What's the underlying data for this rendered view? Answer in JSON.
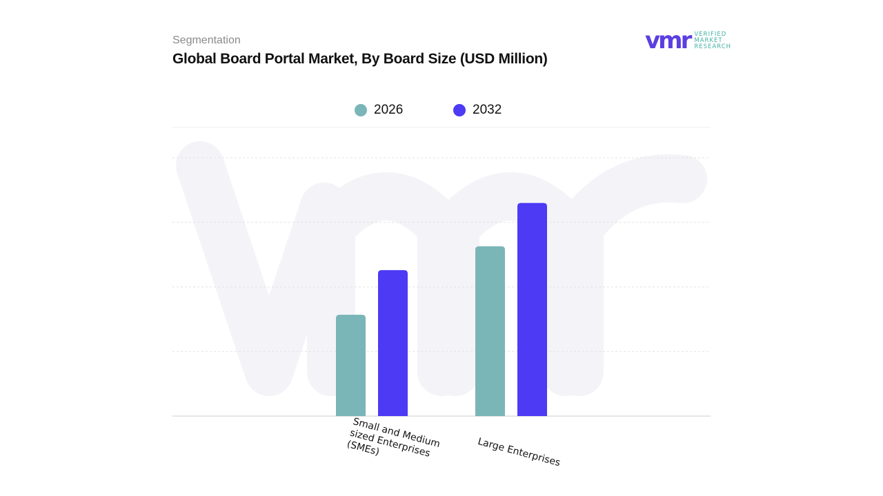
{
  "header": {
    "section": "Segmentation",
    "title": "Global Board Portal Market, By Board Size (USD Million)"
  },
  "logo": {
    "mark": "vmr",
    "line1": "VERIFIED",
    "line2": "MARKET",
    "line3": "RESEARCH"
  },
  "chart_data": {
    "type": "bar",
    "title": "Global Board Portal Market, By Board Size (USD Million)",
    "categories": [
      "Small and Medium sized Enterprises (SMEs)",
      "Large Enterprises"
    ],
    "series": [
      {
        "name": "2026",
        "color": "#7ab5b8",
        "values": [
          1.57,
          2.63
        ]
      },
      {
        "name": "2032",
        "color": "#4c3af5",
        "values": [
          2.26,
          3.3
        ]
      }
    ],
    "ylim": [
      0,
      4
    ],
    "grid": true,
    "y_tick_labels_shown": false,
    "legend": "top-center"
  }
}
